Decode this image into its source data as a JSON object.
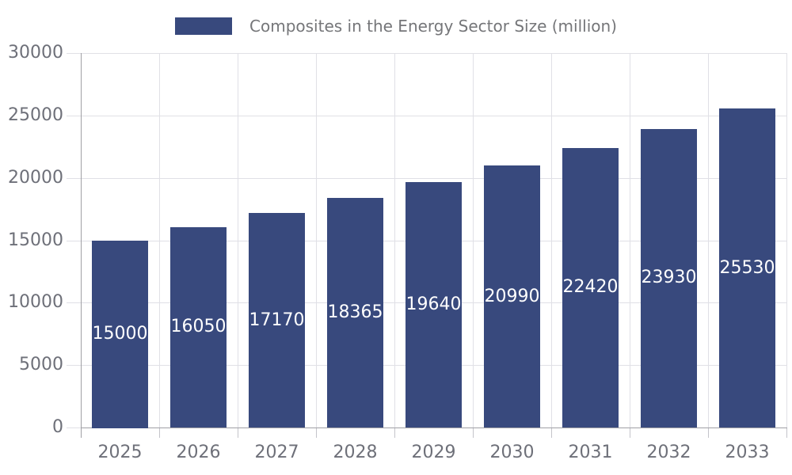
{
  "legend": {
    "label": "Composites in the Energy Sector Size (million)"
  },
  "chart_data": {
    "type": "bar",
    "title": "Composites in the Energy Sector Size (million)",
    "categories": [
      "2025",
      "2026",
      "2027",
      "2028",
      "2029",
      "2030",
      "2031",
      "2032",
      "2033"
    ],
    "values": [
      15000,
      16050,
      17170,
      18365,
      19640,
      20990,
      22420,
      23930,
      25530
    ],
    "bar_value_labels": [
      "15000",
      "16050",
      "17170",
      "18365",
      "19640",
      "20990",
      "22420",
      "23930",
      "25530"
    ],
    "xlabel": "",
    "ylabel": "",
    "ylim": [
      0,
      30000
    ],
    "yticks": [
      0,
      5000,
      10000,
      15000,
      20000,
      25000,
      30000
    ],
    "grid": true,
    "legend_position": "top-center",
    "value_label_position": "inside-center",
    "colors": {
      "bar": "#38497D",
      "grid": "#E0E0E6",
      "axis_line": "#A0A0A5",
      "x_tick": "#C4C4CA",
      "axis_label_text": "#6E7079",
      "value_label_text": "#FFFFFF",
      "legend_text": "#757679"
    }
  }
}
